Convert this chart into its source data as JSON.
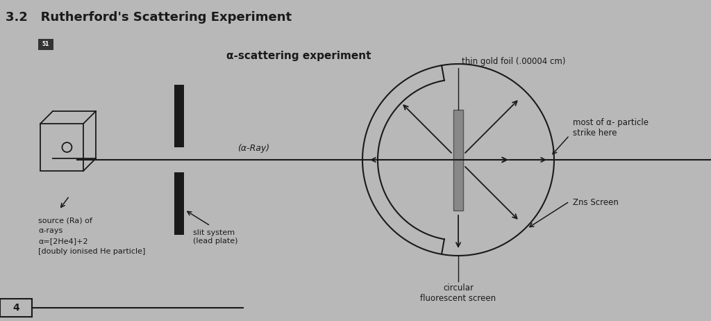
{
  "title": "3.2   Rutherford's Scattering Experiment",
  "subtitle": "α-scattering experiment",
  "bg_color": "#b8b8b8",
  "text_color": "#1a1a1a",
  "foil_label": "thin gold foil (.00004 cm)",
  "most_label": "most of α- particle\nstrike here",
  "zns_label": "Zns Screen",
  "source_label1": "source (Ra) of",
  "source_label2": "α-rays",
  "source_label3": "α=[2He4]+2",
  "source_label4": "[doubly ionised He particle]",
  "slit_label": "slit system\n(lead plate)",
  "alpha_ray_label": "(α-Ray)",
  "circular_label": "circular\nfluorescent screen",
  "page_num": "4"
}
